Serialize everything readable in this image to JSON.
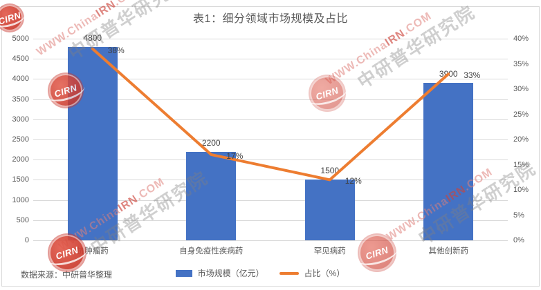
{
  "title": "表1：细分领域市场规模及占比",
  "source_note": "数据来源：中研普华整理",
  "legend": {
    "bar_label": "市场规模（亿元）",
    "line_label": "占比（%）"
  },
  "watermark": {
    "url_prefix": "WWW.China",
    "url_mid": "IRN",
    "url_suffix": ".COM",
    "brand_text": "中研普华研究院",
    "badge_text": "CIRN"
  },
  "colors": {
    "bar": "#4472C4",
    "line": "#ED7D31",
    "grid": "#D9D9D9",
    "axis_text": "#595959",
    "data_label": "#404040"
  },
  "chart_data": {
    "type": "bar+line combo",
    "title": "表1：细分领域市场规模及占比",
    "categories": [
      "抗肿瘤药",
      "自身免疫性疾病药",
      "罕见病药",
      "其他创新药"
    ],
    "series": [
      {
        "name": "市场规模（亿元）",
        "type": "bar",
        "axis": "left",
        "color": "#4472C4",
        "values": [
          4800,
          2200,
          1500,
          3900
        ],
        "labels": [
          "4800",
          "2200",
          "1500",
          "3900"
        ]
      },
      {
        "name": "占比（%）",
        "type": "line",
        "axis": "right",
        "color": "#ED7D31",
        "values": [
          38,
          17,
          12,
          33
        ],
        "labels": [
          "38%",
          "17%",
          "12%",
          "33%"
        ]
      }
    ],
    "left_axis": {
      "min": 0,
      "max": 5000,
      "step": 500,
      "ticks": [
        "5000",
        "4500",
        "4000",
        "3500",
        "3000",
        "2500",
        "2000",
        "1500",
        "1000",
        "500",
        "0"
      ]
    },
    "right_axis": {
      "min": 0,
      "max": 40,
      "step": 5,
      "ticks": [
        "40%",
        "35%",
        "30%",
        "25%",
        "20%",
        "15%",
        "10%",
        "5%",
        "0%"
      ]
    },
    "grid": true,
    "legend_position": "bottom"
  }
}
